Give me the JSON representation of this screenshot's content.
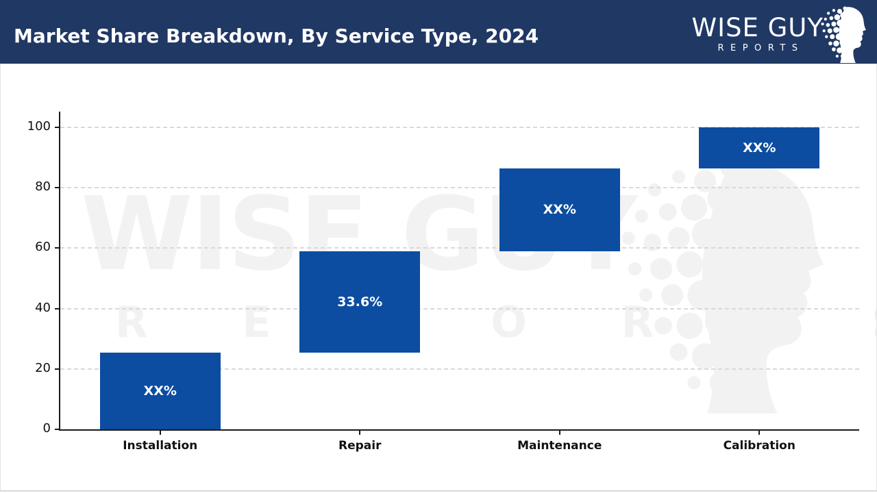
{
  "header": {
    "title": "Market Share Breakdown, By Service Type, 2024",
    "bg_color": "#203864",
    "text_color": "#ffffff",
    "logo": {
      "line1": "WISE GUY",
      "line2": "REPORTS"
    }
  },
  "watermark": {
    "line1": "WISE GUY",
    "line2": "R E P O R T S",
    "color": "#f2f2f2"
  },
  "chart_data": {
    "type": "bar",
    "subtype": "floating-waterfall-stacked",
    "title": "Market Share Breakdown, By Service Type, 2024",
    "xlabel": "",
    "ylabel": "",
    "categories": [
      "Installation",
      "Repair",
      "Maintenance",
      "Calibration"
    ],
    "segments": [
      {
        "category": "Installation",
        "start": 0,
        "end": 25.4,
        "value": 25.4,
        "label": "XX%"
      },
      {
        "category": "Repair",
        "start": 25.4,
        "end": 59.0,
        "value": 33.6,
        "label": "33.6%"
      },
      {
        "category": "Maintenance",
        "start": 59.0,
        "end": 86.5,
        "value": 27.5,
        "label": "XX%"
      },
      {
        "category": "Calibration",
        "start": 86.5,
        "end": 100.0,
        "value": 13.5,
        "label": "XX%"
      }
    ],
    "yticks": [
      0,
      20,
      40,
      60,
      80,
      100
    ],
    "ylim": [
      0,
      105
    ],
    "grid": {
      "horizontal": true,
      "style": "dashed",
      "color": "#d9d9d9"
    },
    "legend": "none",
    "bar_color": "#0c4da1",
    "bar_label_color": "#ffffff",
    "axis_color": "#1a1a1a"
  }
}
